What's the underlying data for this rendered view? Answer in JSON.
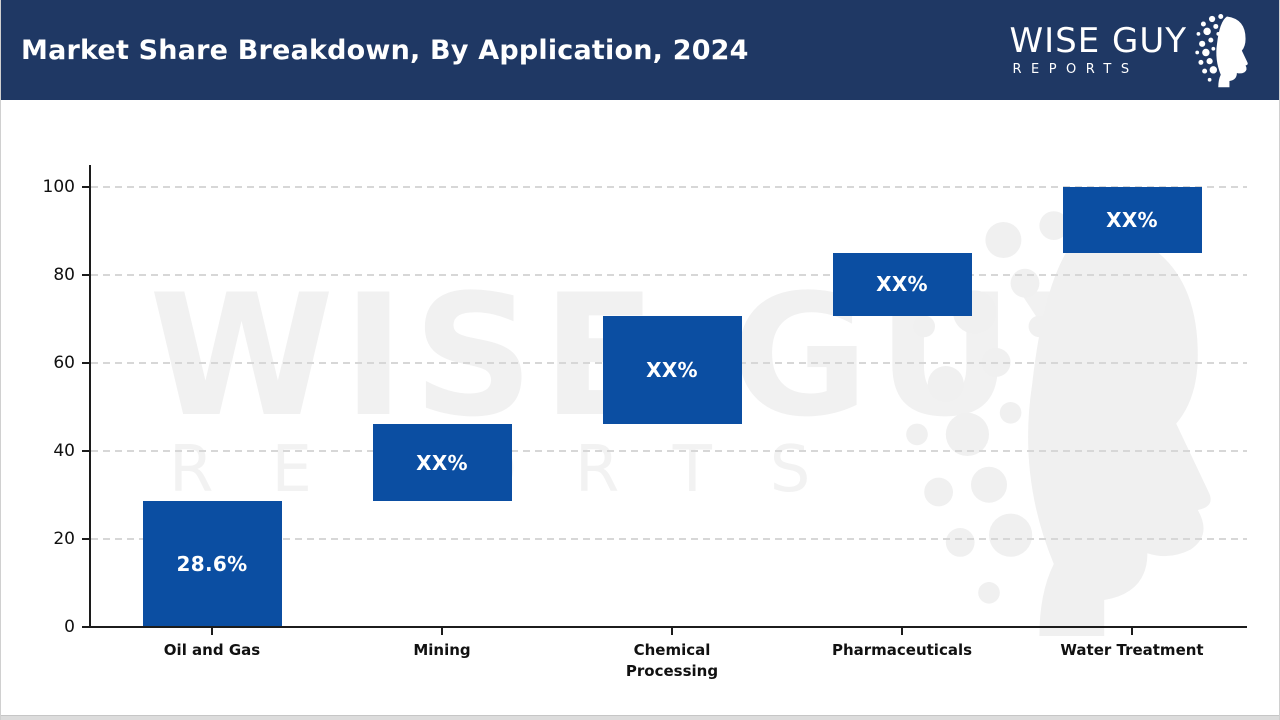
{
  "header": {
    "title": "Market Share Breakdown, By Application, 2024",
    "logo": {
      "line1": "WISE GUY",
      "line2": "REPORTS"
    }
  },
  "watermark": {
    "line1": "WISE GUY",
    "line2": "REPORTS"
  },
  "chart_data": {
    "type": "bar",
    "subtype": "waterfall",
    "title": "Market Share Breakdown, By Application, 2024",
    "categories": [
      "Oil and Gas",
      "Mining",
      "Chemical Processing",
      "Pharmaceuticals",
      "Water Treatment"
    ],
    "bars": [
      {
        "category": "Oil and Gas",
        "tick_label": "Oil and Gas",
        "start": 0,
        "end": 28.6,
        "label": "28.6%"
      },
      {
        "category": "Mining",
        "tick_label": "Mining",
        "start": 28.6,
        "end": 46.1,
        "label": "XX%"
      },
      {
        "category": "Chemical Processing",
        "tick_label": "Chemical\nProcessing",
        "start": 46.1,
        "end": 70.7,
        "label": "XX%"
      },
      {
        "category": "Pharmaceuticals",
        "tick_label": "Pharmaceuticals",
        "start": 70.7,
        "end": 85.0,
        "label": "XX%"
      },
      {
        "category": "Water Treatment",
        "tick_label": "Water Treatment",
        "start": 85.0,
        "end": 100.0,
        "label": "XX%"
      }
    ],
    "xlabel": "",
    "ylabel": "",
    "ylim": [
      0,
      100
    ],
    "yticks": [
      0,
      20,
      40,
      60,
      80,
      100
    ],
    "grid": "horizontal-dashed",
    "legend": false,
    "bar_color": "#0b4ea2",
    "bar_label_color": "#ffffff"
  },
  "colors": {
    "header_bg": "#1f3864",
    "bar": "#0b4ea2",
    "grid": "#d7d7d7",
    "axis": "#1c1c1c",
    "watermark": "#f1f1f1"
  }
}
